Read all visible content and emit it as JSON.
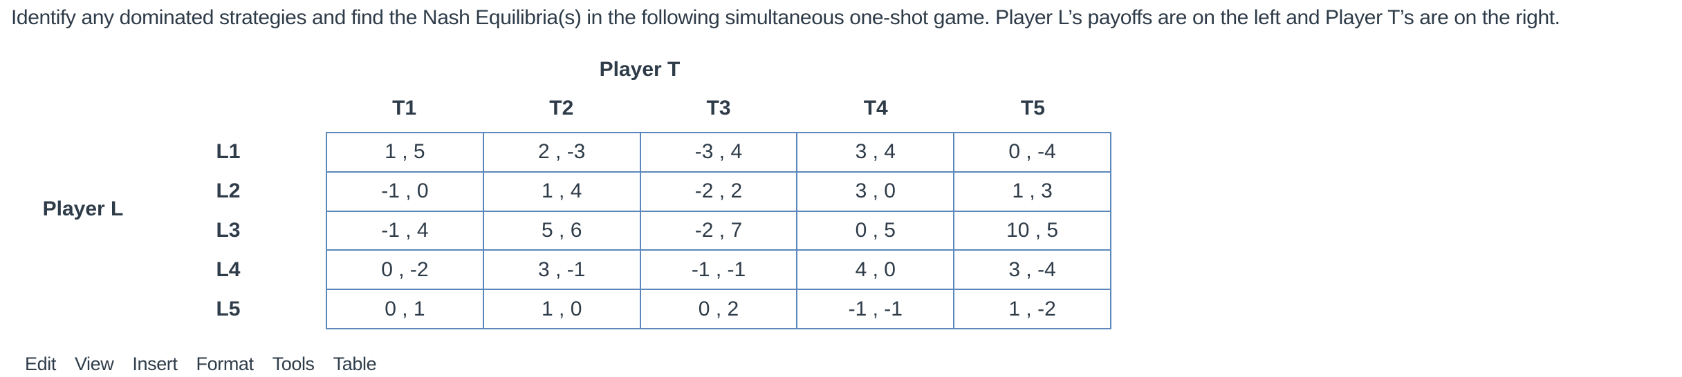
{
  "question": "Identify any dominated strategies and find the Nash Equilibria(s) in the following simultaneous one-shot game. Player L’s payoffs are on the left and Player T’s are on the right.",
  "game": {
    "column_player_label": "Player T",
    "row_player_label": "Player L",
    "column_headers": [
      "T1",
      "T2",
      "T3",
      "T4",
      "T5"
    ],
    "row_headers": [
      "L1",
      "L2",
      "L3",
      "L4",
      "L5"
    ],
    "payoffs": [
      [
        "1 , 5",
        "2 , -3",
        "-3 , 4",
        "3 , 4",
        "0 , -4"
      ],
      [
        "-1 , 0",
        "1 , 4",
        "-2 , 2",
        "3 , 0",
        "1 , 3"
      ],
      [
        "-1 , 4",
        "5 , 6",
        "-2 , 7",
        "0 , 5",
        "10 , 5"
      ],
      [
        "0 , -2",
        "3 , -1",
        "-1 , -1",
        "4 , 0",
        "3 , -4"
      ],
      [
        "0 , 1",
        "1 , 0",
        "0 , 2",
        "-1 , -1",
        "1 , -2"
      ]
    ]
  },
  "menu": {
    "items": [
      "Edit",
      "View",
      "Insert",
      "Format",
      "Tools",
      "Table"
    ]
  },
  "colors": {
    "text": "#2e3b48",
    "table_border": "#5b87bb"
  }
}
